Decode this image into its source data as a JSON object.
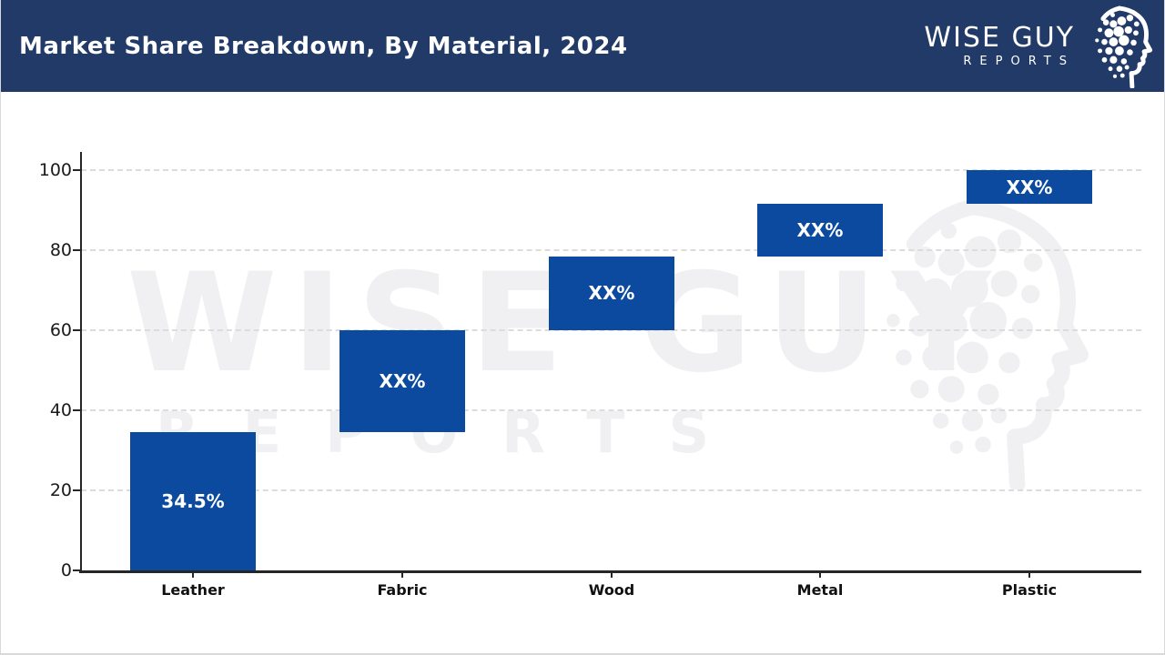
{
  "header": {
    "title": "Market Share Breakdown, By Material, 2024",
    "logo": {
      "line1": "WISE GUY",
      "line2": "REPORTS"
    }
  },
  "watermark": {
    "line1": "WISE GUY",
    "line2": "REPORTS"
  },
  "colors": {
    "header_bg": "#213a68",
    "bar": "#0b4a9e",
    "grid": "#dcdcdc",
    "axis": "#262626",
    "bar_label": "#ffffff",
    "watermark": "#f0f0f2"
  },
  "chart_data": {
    "type": "bar",
    "subtype": "waterfall",
    "title": "Market Share Breakdown, By Material, 2024",
    "categories": [
      "Leather",
      "Fabric",
      "Wood",
      "Metal",
      "Plastic"
    ],
    "series": [
      {
        "name": "Market share (cumulative %)",
        "segments": [
          {
            "category": "Leather",
            "start": 0,
            "end": 34.5,
            "label": "34.5%"
          },
          {
            "category": "Fabric",
            "start": 34.5,
            "end": 60,
            "label": "XX%"
          },
          {
            "category": "Wood",
            "start": 60,
            "end": 78.5,
            "label": "XX%"
          },
          {
            "category": "Metal",
            "start": 78.5,
            "end": 91.5,
            "label": "XX%"
          },
          {
            "category": "Plastic",
            "start": 91.5,
            "end": 100,
            "label": "XX%"
          }
        ]
      }
    ],
    "xlabel": "",
    "ylabel": "",
    "y_ticks": [
      0,
      20,
      40,
      60,
      80,
      100
    ],
    "ylim": [
      0,
      105
    ],
    "grid": "dashed-horizontal",
    "legend": "none"
  }
}
